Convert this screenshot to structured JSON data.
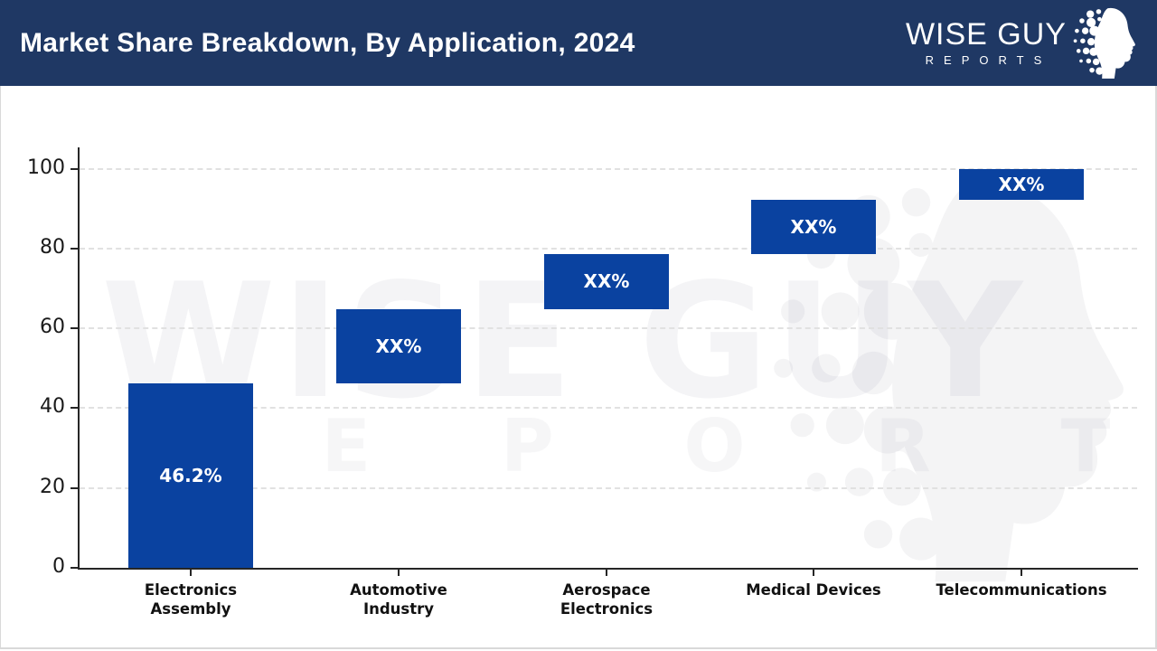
{
  "header": {
    "title": "Market Share Breakdown, By Application, 2024",
    "logo_line1": "WISE GUY",
    "logo_line2": "REPORTS",
    "bg_color": "#1f3864"
  },
  "watermark": {
    "line1": "WISE GUY",
    "line2": "R E P O R T S"
  },
  "chart_data": {
    "type": "bar",
    "subtype": "floating-waterfall",
    "title": "Market Share Breakdown, By Application, 2024",
    "categories": [
      "Electronics Assembly",
      "Automotive Industry",
      "Aerospace Electronics",
      "Medical Devices",
      "Telecommunications"
    ],
    "categories_display": [
      "Electronics\nAssembly",
      "Automotive\nIndustry",
      "Aerospace\nElectronics",
      "Medical Devices",
      "Telecommunications"
    ],
    "segments": [
      [
        0,
        46.2
      ],
      [
        46.2,
        64.8
      ],
      [
        64.8,
        78.6
      ],
      [
        78.6,
        92.3
      ],
      [
        92.3,
        100
      ]
    ],
    "bar_labels": [
      "46.2%",
      "XX%",
      "XX%",
      "XX%",
      "XX%"
    ],
    "yticks": [
      0,
      20,
      40,
      60,
      80,
      100
    ],
    "ylim": [
      0,
      105
    ],
    "xlabel": "",
    "ylabel": "",
    "grid": "horizontal-dashed",
    "legend": "none",
    "bar_color": "#0a42a0",
    "bar_label_color": "#ffffff",
    "axis_color": "#262626",
    "grid_color": "#e1e1e1"
  }
}
